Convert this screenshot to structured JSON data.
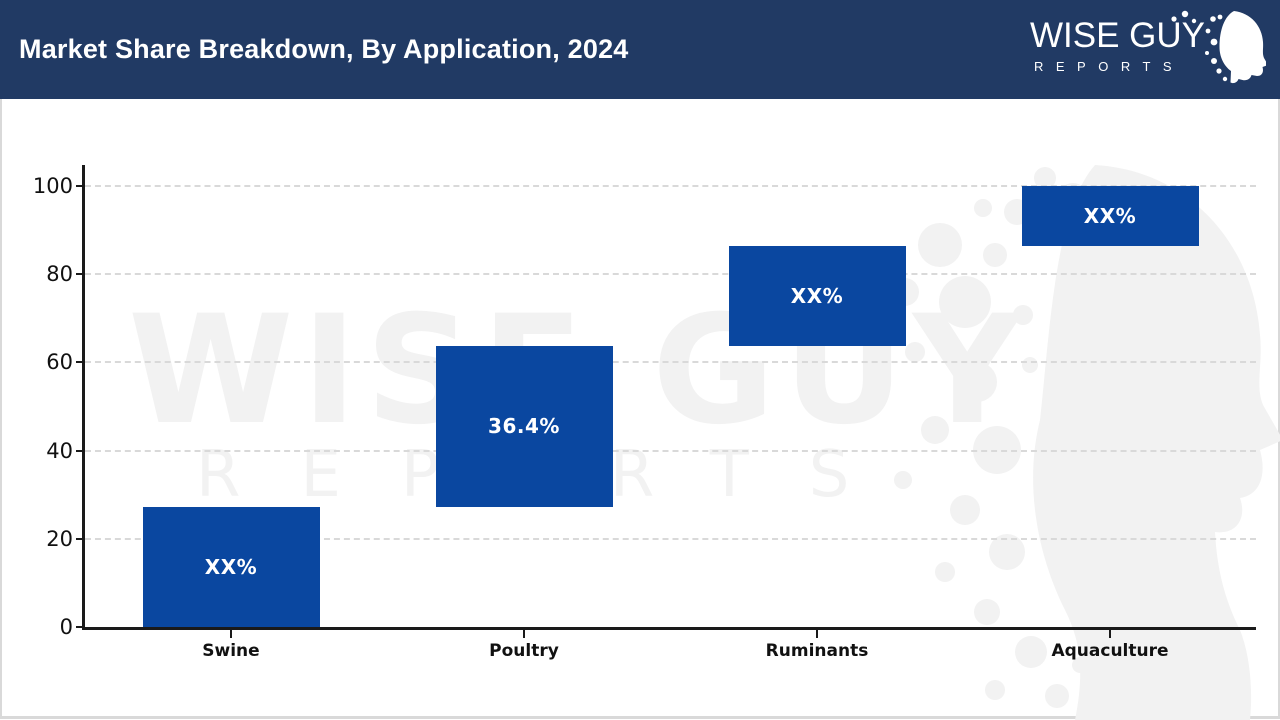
{
  "header": {
    "title": "Market Share Breakdown, By Application, 2024",
    "bg_color": "#213a64",
    "logo_line1": "WISE GUY",
    "logo_line2": "REPORTS"
  },
  "watermark": {
    "text_line1": "WISE GUY",
    "text_line2": "REPORTS"
  },
  "chart_data": {
    "type": "bar",
    "variant": "waterfall",
    "title": "Market Share Breakdown, By Application, 2024",
    "categories": [
      "Swine",
      "Poultry",
      "Ruminants",
      "Aquaculture"
    ],
    "segments": [
      {
        "category": "Swine",
        "start": 0,
        "end": 27.3,
        "value": 27.3,
        "label": "XX%"
      },
      {
        "category": "Poultry",
        "start": 27.3,
        "end": 63.7,
        "value": 36.4,
        "label": "36.4%"
      },
      {
        "category": "Ruminants",
        "start": 63.7,
        "end": 86.4,
        "value": 22.7,
        "label": "XX%"
      },
      {
        "category": "Aquaculture",
        "start": 86.4,
        "end": 100,
        "value": 13.6,
        "label": "XX%"
      }
    ],
    "xlabel": "",
    "ylabel": "",
    "ylim": [
      0,
      105
    ],
    "yticks": [
      0,
      20,
      40,
      60,
      80,
      100
    ],
    "grid": "horizontal-dashed",
    "legend": "none",
    "bar_color": "#0a47a0",
    "bar_label_color": "#ffffff",
    "axis_color": "#1a1a1a",
    "grid_color": "#d9d9d9"
  }
}
